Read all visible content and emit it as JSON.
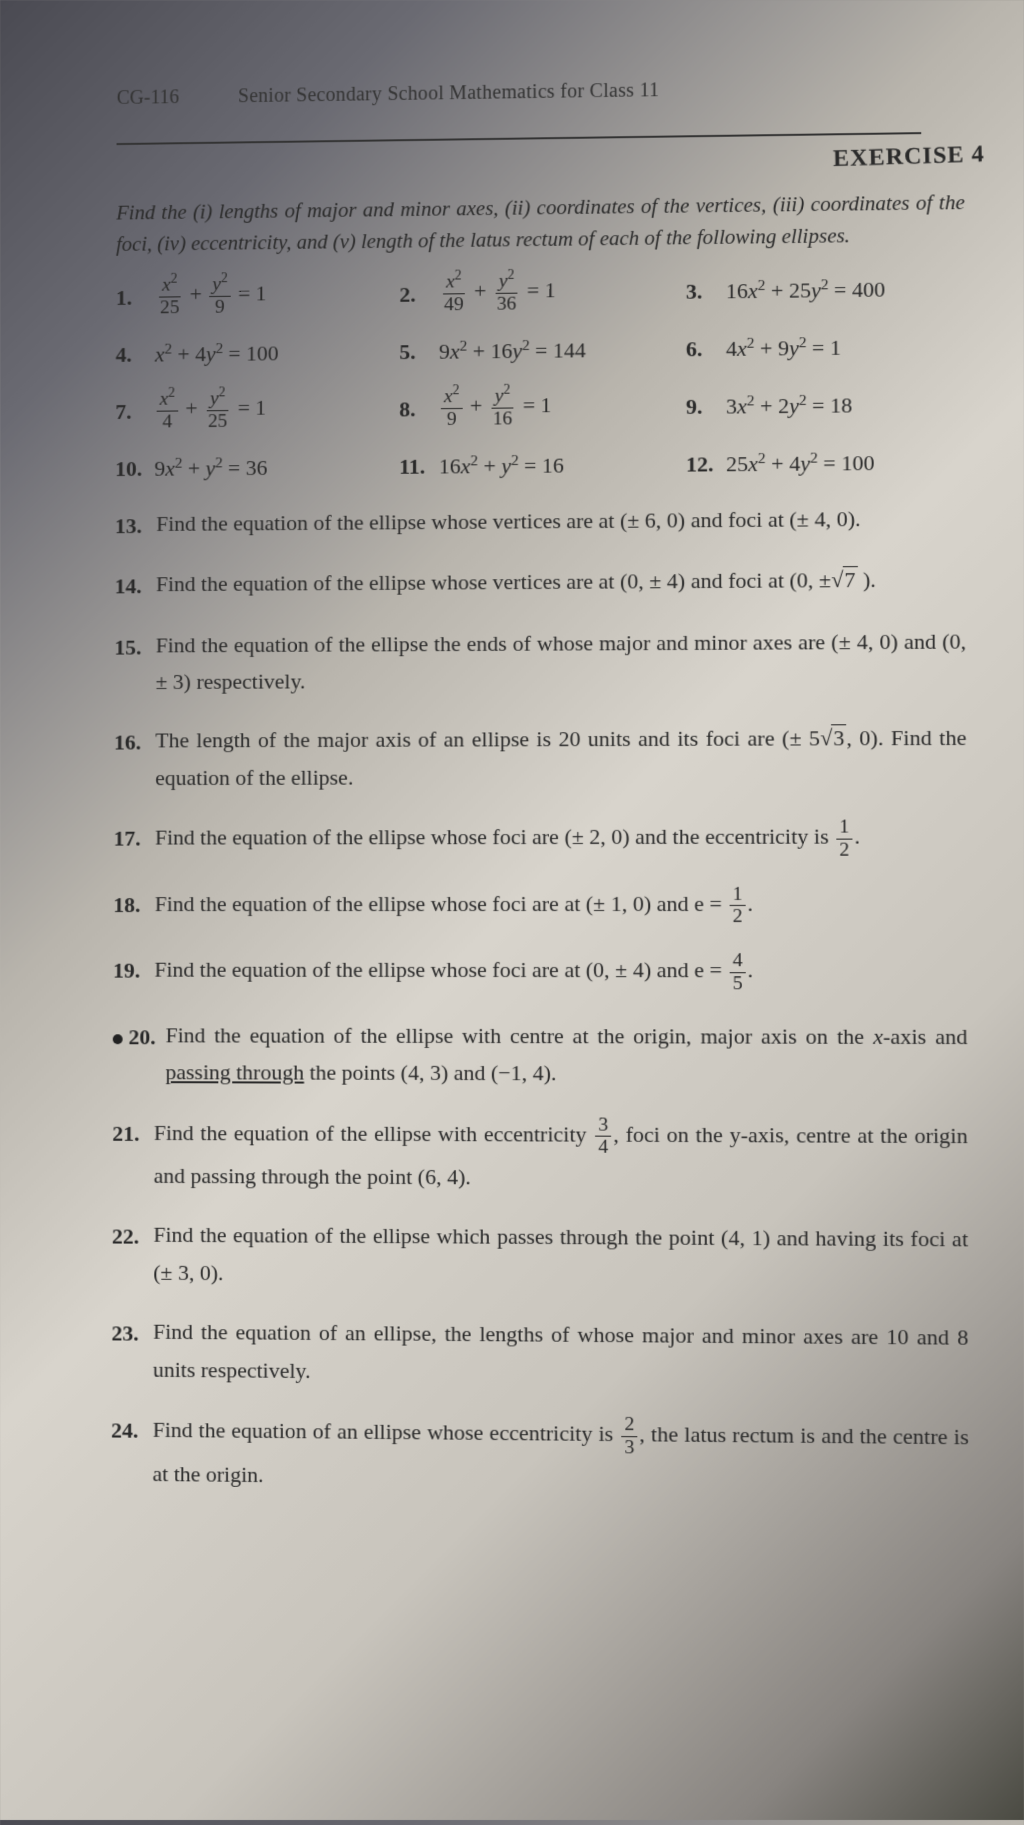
{
  "page_code": "CG-116",
  "book_title": "Senior Secondary School Mathematics for Class 11",
  "exercise_title": "EXERCISE 4",
  "intro": "Find the (i) lengths of major and minor axes, (ii) coordinates of the vertices, (iii) coordinates of the foci, (iv) eccentricity, and (v) length of the latus rectum of each of the following ellipses.",
  "equations": [
    {
      "n": "1.",
      "type": "frac2",
      "dx": "25",
      "dy": "9"
    },
    {
      "n": "2.",
      "type": "frac2",
      "dx": "49",
      "dy": "36"
    },
    {
      "n": "3.",
      "type": "poly",
      "text": "16x² + 25y² = 400"
    },
    {
      "n": "4.",
      "type": "poly",
      "text": "x² + 4y² = 100"
    },
    {
      "n": "5.",
      "type": "poly",
      "text": "9x² + 16y² = 144"
    },
    {
      "n": "6.",
      "type": "poly",
      "text": "4x² + 9y² = 1"
    },
    {
      "n": "7.",
      "type": "frac2",
      "dx": "4",
      "dy": "25"
    },
    {
      "n": "8.",
      "type": "frac2",
      "dx": "9",
      "dy": "16"
    },
    {
      "n": "9.",
      "type": "poly",
      "text": "3x² + 2y² = 18"
    },
    {
      "n": "10.",
      "type": "poly",
      "text": "9x² + y² = 36"
    },
    {
      "n": "11.",
      "type": "poly",
      "text": "16x² + y² = 16"
    },
    {
      "n": "12.",
      "type": "poly",
      "text": "25x² + 4y² = 100"
    }
  ],
  "questions": {
    "q13": {
      "n": "13.",
      "text_a": "Find the equation of the ellipse whose vertices are at (± 6, 0) and foci at (± 4, 0)."
    },
    "q14": {
      "n": "14.",
      "text_a": "Find the equation of the ellipse whose vertices are at (0, ± 4) and foci at (0, ±√7 )."
    },
    "q15": {
      "n": "15.",
      "text_a": "Find the equation of the ellipse the ends of whose major and minor axes are (± 4, 0) and (0, ± 3) respectively."
    },
    "q16": {
      "n": "16.",
      "text_a": "The length of the major axis of an ellipse is 20 units and its foci are (± 5√3, 0). Find the equation of the ellipse."
    },
    "q17": {
      "n": "17.",
      "text_a": "Find the equation of the ellipse whose foci are (± 2, 0) and the eccentricity is",
      "f_num": "1",
      "f_den": "2"
    },
    "q18": {
      "n": "18.",
      "text_a": "Find the equation of the ellipse whose foci are at (± 1, 0) and e = ",
      "f_num": "1",
      "f_den": "2"
    },
    "q19": {
      "n": "19.",
      "text_a": "Find the equation of the ellipse whose foci are at (0, ± 4) and e = ",
      "f_num": "4",
      "f_den": "5"
    },
    "q20": {
      "n": "20.",
      "text_a": "Find the equation of the ellipse with centre at the origin, major axis on the x-axis and passing through the points (4, 3) and (−1, 4)."
    },
    "q21": {
      "n": "21.",
      "text_a": "Find the equation of the ellipse with eccentricity ",
      "f_num": "3",
      "f_den": "4",
      "text_b": ", foci on the y-axis, centre at the origin and passing through the point (6, 4)."
    },
    "q22": {
      "n": "22.",
      "text_a": "Find the equation of the ellipse which passes through the point (4, 1) and having its foci at (± 3, 0)."
    },
    "q23": {
      "n": "23.",
      "text_a": "Find the equation of an ellipse, the lengths of whose major and minor axes are 10 and 8 units respectively."
    },
    "q24": {
      "n": "24.",
      "text_a": "Find the equation of an ellipse whose eccentricity is ",
      "f_num": "2",
      "f_den": "3",
      "text_b": ", the latus rectum is and the centre is at the origin."
    }
  }
}
